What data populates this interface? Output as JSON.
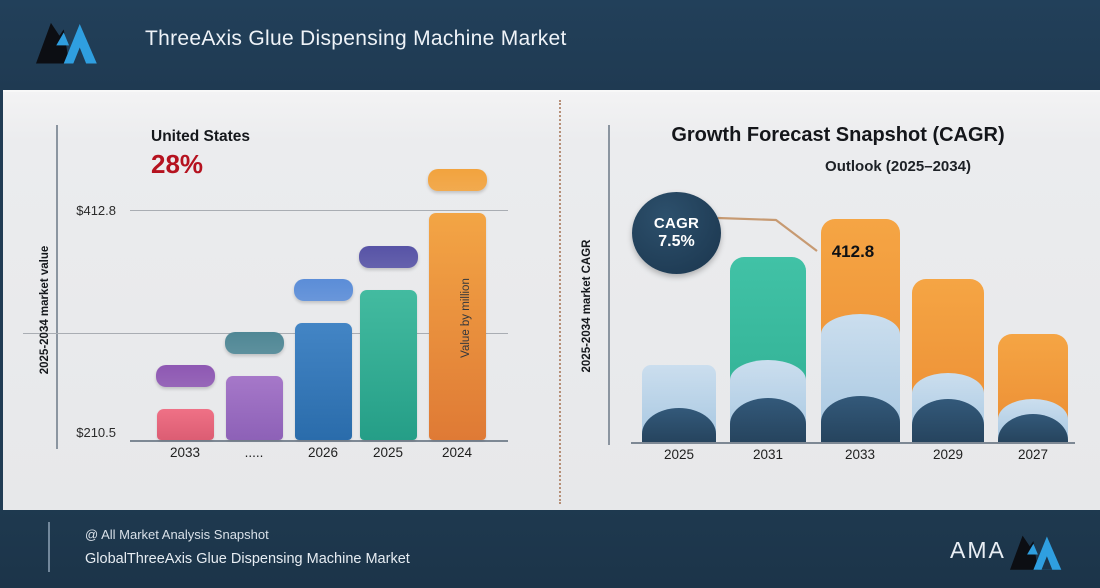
{
  "header": {
    "title": "ThreeAxis Glue Dispensing Machine Market",
    "logo": "ama-mountain-logo"
  },
  "footer": {
    "credit": "@ All Market Analysis Snapshot",
    "source": "GlobalThreeAxis Glue Dispensing Machine Market",
    "brand_text": "AMA",
    "logo": "ama-mountain-logo"
  },
  "colors": {
    "header_bg": "#213c54",
    "content_bg": "#eaebed",
    "accent_red": "#b5121f",
    "badge_bg": "#24455e",
    "connector": "#c79a72",
    "divider_dotted": "#ad7f63"
  },
  "chart_data": [
    {
      "type": "bar",
      "title": "United States",
      "highlight_value": "28%",
      "ylabel": "2025-2034 market value",
      "right_side_label": "Value by million",
      "y_ticks": [
        "$412.8",
        "$210.5"
      ],
      "ymin": 210.5,
      "gridline_value": 412.8,
      "grid": "on",
      "categories": [
        "2033",
        ".....",
        "2026",
        "2025",
        "2024"
      ],
      "values": [
        238,
        267,
        313,
        342,
        410
      ],
      "bar_colors": [
        [
          "#ef7186",
          "#dc5d73"
        ],
        [
          "#a678c9",
          "#8d61b7"
        ],
        [
          "#4385c5",
          "#2a6cab"
        ],
        [
          "#43bba0",
          "#259e87"
        ],
        [
          "#f3a545",
          "#df7a35"
        ]
      ],
      "cap_colors": [
        "#8e58b3",
        "#4f8795",
        "#5b8dd8",
        "#5753a6",
        "#f2a33e"
      ]
    },
    {
      "type": "stacked-bar",
      "title": "Growth Forecast Snapshot (CAGR)",
      "subtitle": "Outlook (2025–2034)",
      "ylabel": "2025-2034 market CAGR",
      "badge": {
        "label": "CAGR",
        "value": "7.5%"
      },
      "annotation": {
        "text": "412.8",
        "category": "2033"
      },
      "categories": [
        "2025",
        "2031",
        "2033",
        "2029",
        "2027"
      ],
      "series": [
        {
          "name": "base",
          "values": [
            63,
            81,
            85,
            80,
            52
          ]
        },
        {
          "name": "mid",
          "values": [
            80,
            70,
            152,
            48,
            28
          ]
        },
        {
          "name": "top",
          "values": [
            0,
            191,
            176,
            174,
            120
          ]
        }
      ],
      "totals": [
        143,
        342,
        413,
        302,
        200
      ],
      "segment_colors": {
        "base": [
          "#33597a",
          "#26445e"
        ],
        "mid": [
          "#cbdeee",
          "#a7c7e1"
        ]
      },
      "top_colors": [
        null,
        [
          "#41c2a6",
          "#2fae92"
        ],
        [
          "#f5a544",
          "#eb8c33"
        ],
        [
          "#f5a544",
          "#eb8c33"
        ],
        [
          "#f5a544",
          "#eb8c33"
        ]
      ]
    }
  ]
}
